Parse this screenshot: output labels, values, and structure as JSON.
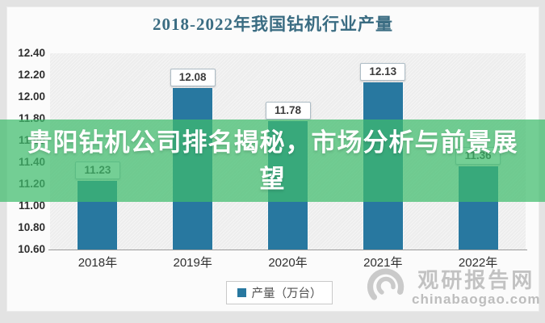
{
  "chart_data": {
    "type": "bar",
    "title": "2018-2022年我国钻机行业产量",
    "categories": [
      "2018年",
      "2019年",
      "2020年",
      "2021年",
      "2022年"
    ],
    "series": [
      {
        "name": "产量（万台）",
        "values": [
          11.23,
          12.08,
          11.78,
          12.13,
          11.36
        ]
      }
    ],
    "value_labels": [
      "11.23",
      "12.08",
      "11.78",
      "12.13",
      "11.36"
    ],
    "yticks": [
      "12.40",
      "12.20",
      "12.00",
      "11.80",
      "11.60",
      "11.40",
      "11.20",
      "11.00",
      "10.80",
      "10.60"
    ],
    "ylim": [
      10.6,
      12.4
    ],
    "grid": false,
    "legend_position": "bottom"
  },
  "banner": {
    "lines": [
      "贵阳钻机公司排名揭秘，市场分析与前景展",
      "望"
    ]
  },
  "watermark": {
    "site_name": "观研报告网",
    "site_url": "chinabaogao.com"
  },
  "colors": {
    "bar": "#2878a0",
    "banner_overlay": "rgba(62,188,108,0.72)",
    "banner_text": "#ffffff",
    "title_text": "#3a6c82"
  }
}
